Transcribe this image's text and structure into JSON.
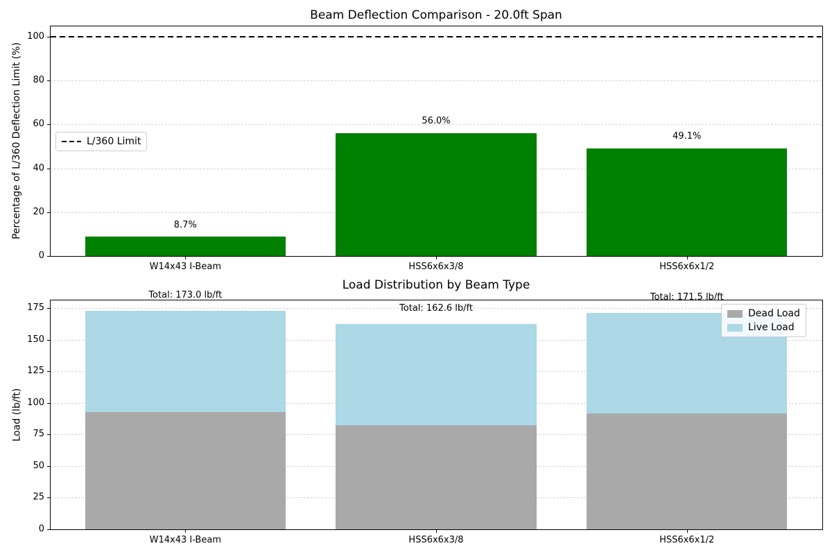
{
  "figure": {
    "background": "#ffffff"
  },
  "chart_data": [
    {
      "type": "bar",
      "title": "Beam Deflection Comparison - 20.0ft Span",
      "ylabel": "Percentage of L/360 Deflection Limit (%)",
      "xlabel": "",
      "categories": [
        "W14x43 I-Beam",
        "HSS6x6x3/8",
        "HSS6x6x1/2"
      ],
      "values": [
        8.7,
        56.0,
        49.1
      ],
      "bar_labels": [
        "8.7%",
        "56.0%",
        "49.1%"
      ],
      "bar_color": "#008000",
      "ylim": [
        0,
        105
      ],
      "yticks": [
        0,
        20,
        40,
        60,
        80,
        100
      ],
      "grid": true,
      "grid_color": "#d3d3d3",
      "ref_line": {
        "value": 100,
        "color": "#000000",
        "style": "dashed"
      },
      "legend": {
        "position": "center-left",
        "entries": [
          {
            "label": "L/360 Limit",
            "swatch": "dashed-line",
            "color": "#000000"
          }
        ]
      }
    },
    {
      "type": "stacked-bar",
      "title": "Load Distribution by Beam Type",
      "ylabel": "Load (lb/ft)",
      "xlabel": "",
      "categories": [
        "W14x43 I-Beam",
        "HSS6x6x3/8",
        "HSS6x6x1/2"
      ],
      "series": [
        {
          "name": "Dead Load",
          "color": "#a9a9a9",
          "values": [
            93.0,
            82.6,
            91.5
          ]
        },
        {
          "name": "Live Load",
          "color": "#add8e6",
          "values": [
            80.0,
            80.0,
            80.0
          ]
        }
      ],
      "totals": [
        173.0,
        162.6,
        171.5
      ],
      "total_labels": [
        "Total: 173.0 lb/ft",
        "Total: 162.6 lb/ft",
        "Total: 171.5 lb/ft"
      ],
      "ylim": [
        0,
        181.7
      ],
      "yticks": [
        0,
        25,
        50,
        75,
        100,
        125,
        150,
        175
      ],
      "grid": true,
      "grid_color": "#d3d3d3",
      "legend": {
        "position": "top-right",
        "entries": [
          {
            "label": "Dead Load",
            "swatch": "patch",
            "color": "#a9a9a9"
          },
          {
            "label": "Live Load",
            "swatch": "patch",
            "color": "#add8e6"
          }
        ]
      }
    }
  ]
}
